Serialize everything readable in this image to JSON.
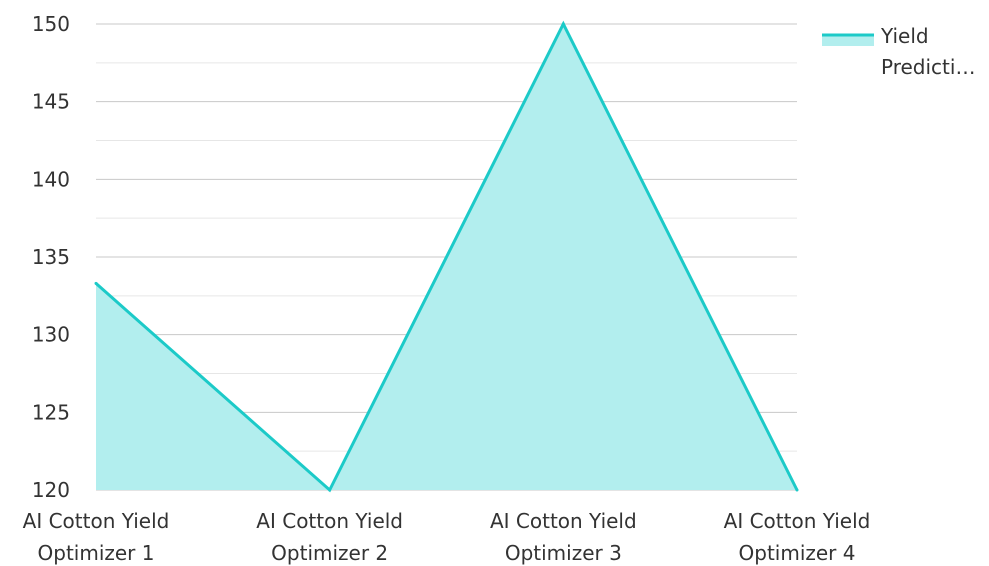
{
  "chart_data": {
    "type": "area",
    "categories": [
      [
        "AI Cotton Yield",
        "Optimizer 1"
      ],
      [
        "AI Cotton Yield",
        "Optimizer 2"
      ],
      [
        "AI Cotton Yield",
        "Optimizer 3"
      ],
      [
        "AI Cotton Yield",
        "Optimizer 4"
      ]
    ],
    "series": [
      {
        "name": [
          "Yield",
          "Predicti…"
        ],
        "values": [
          133.3,
          120,
          150,
          120
        ],
        "line_color": "#1ccac8",
        "fill_color": "#b2eeee"
      }
    ],
    "yticks": [
      "120",
      "125",
      "130",
      "135",
      "140",
      "145",
      "150"
    ],
    "ylim": [
      120,
      150
    ],
    "grid": true,
    "legend": "top-right",
    "title": "",
    "xlabel": "",
    "ylabel": ""
  }
}
